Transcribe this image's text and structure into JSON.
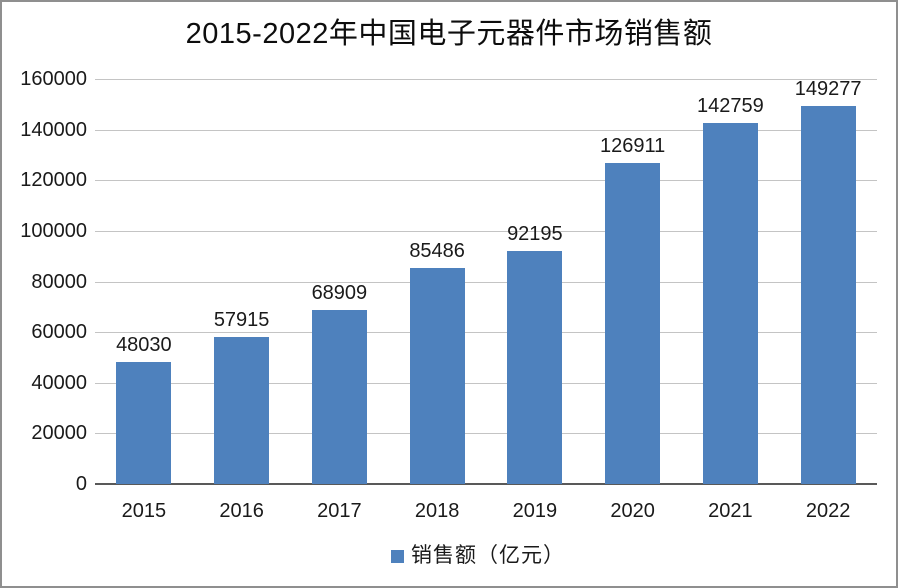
{
  "chart_data": {
    "type": "bar",
    "title": "2015-2022年中国电子元器件市场销售额",
    "categories": [
      "2015",
      "2016",
      "2017",
      "2018",
      "2019",
      "2020",
      "2021",
      "2022"
    ],
    "series": [
      {
        "name": "销售额（亿元）",
        "values": [
          48030,
          57915,
          68909,
          85486,
          92195,
          126911,
          142759,
          149277
        ]
      }
    ],
    "data_labels": [
      48030,
      57915,
      68909,
      85486,
      92195,
      126911,
      142759,
      149277
    ],
    "yticks": [
      0,
      20000,
      40000,
      60000,
      80000,
      100000,
      120000,
      140000,
      160000
    ],
    "ylim": [
      0,
      160000
    ],
    "ytick_step": 20000,
    "xlabel": "",
    "ylabel": "",
    "grid": true,
    "legend_position": "bottom",
    "colors": {
      "bar": "#4e81bd",
      "gridline": "#c4c4c4",
      "axis_line": "#595959",
      "text": "#1a1a1a",
      "title_text": "#0d0d0d",
      "frame_border": "#8f8f8f",
      "background": "#ffffff"
    }
  }
}
